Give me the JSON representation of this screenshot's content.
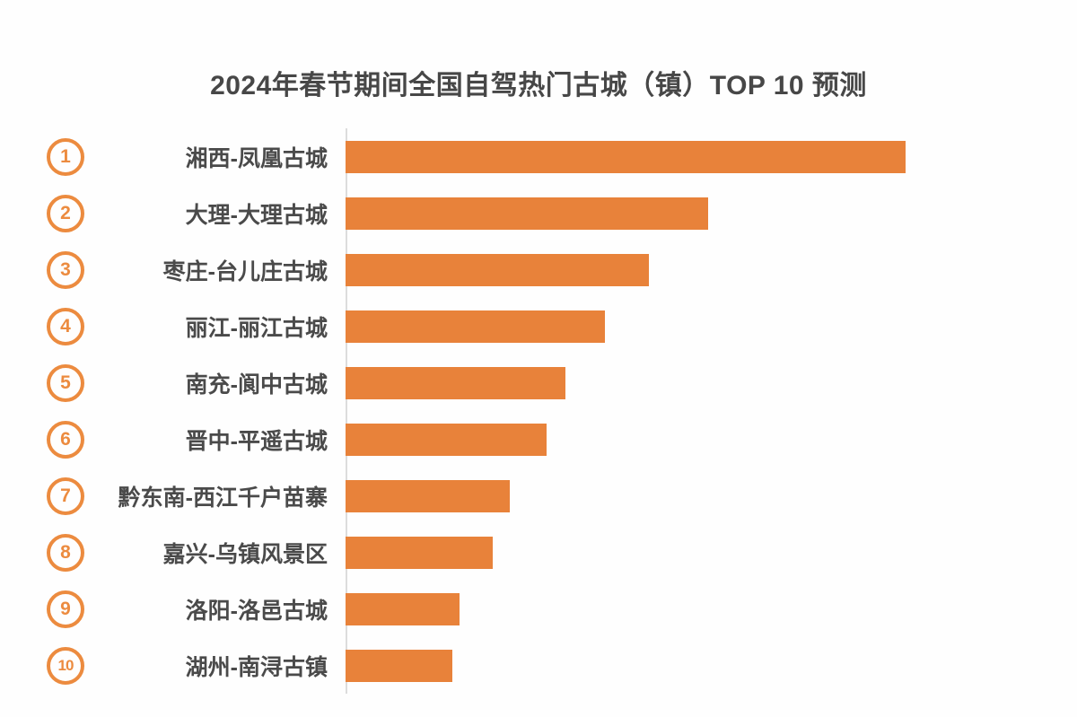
{
  "page": {
    "background_color": "#fefefe"
  },
  "header": {
    "title": "2024年春节期间全国自驾热门古城（镇）TOP 10 预测",
    "title_color": "#474747"
  },
  "chart_data": {
    "type": "bar",
    "orientation": "horizontal",
    "title": "2024年春节期间全国自驾热门古城（镇）TOP 10 预测",
    "ranks": [
      "1",
      "2",
      "3",
      "4",
      "5",
      "6",
      "7",
      "8",
      "9",
      "10"
    ],
    "categories": [
      "湘西-凤凰古城",
      "大理-大理古城",
      "枣庄-台儿庄古城",
      "丽江-丽江古城",
      "南充-阆中古城",
      "晋中-平遥古城",
      "黔东南-西江千户苗寨",
      "嘉兴-乌镇风景区",
      "洛阳-洛邑古城",
      "湖州-南浔古镇"
    ],
    "values": [
      100,
      64.7,
      54.2,
      46.3,
      39.3,
      35.9,
      29.3,
      26.3,
      20.4,
      19.1
    ],
    "value_unit": "percent_of_longest_bar",
    "value_labels_shown": false,
    "xlabel": "",
    "ylabel": "",
    "gridlines": false,
    "legend": "none",
    "bar_color": "#e8823a",
    "rank_badge_color": "#ec8b3f",
    "axis_line_color": "#dcdcdc",
    "label_color": "#4a4a4a"
  }
}
